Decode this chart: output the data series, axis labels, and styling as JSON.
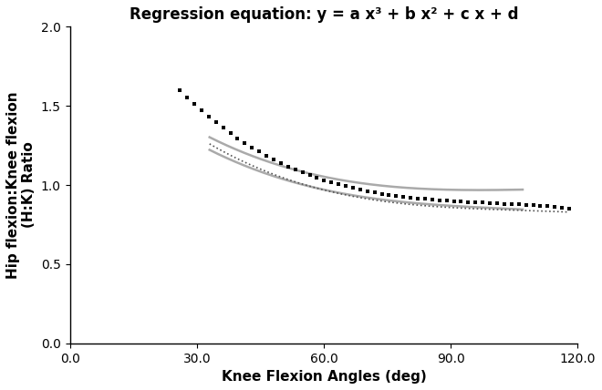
{
  "title": "Regression equation: y = a x³ + b x² + c x + d",
  "xlabel": "Knee Flexion Angles (deg)",
  "ylabel": "Hip flexion:Knee flexion\n(H:K) Ratio",
  "xlim": [
    0.0,
    120.0
  ],
  "ylim": [
    0.0,
    2.0
  ],
  "xticks": [
    0.0,
    30.0,
    60.0,
    90.0,
    120.0
  ],
  "yticks": [
    0.0,
    0.5,
    1.0,
    1.5,
    2.0
  ],
  "background_color": "#ffffff",
  "color_grey": "#aaaaaa",
  "color_black": "#111111",
  "color_dotted": "#555555",
  "title_fontsize": 12,
  "label_fontsize": 11,
  "tick_fontsize": 10,
  "main_pts_x": [
    26,
    32,
    40,
    50,
    60,
    70,
    80,
    90,
    100,
    110,
    118
  ],
  "main_pts_y": [
    1.6,
    1.45,
    1.28,
    1.14,
    1.03,
    0.97,
    0.92,
    0.9,
    0.88,
    0.87,
    0.855
  ],
  "grey_upper_pts_x": [
    33,
    40,
    50,
    60,
    70,
    80,
    90,
    100,
    107
  ],
  "grey_upper_pts_y": [
    1.3,
    1.22,
    1.12,
    1.05,
    1.01,
    0.98,
    0.97,
    0.97,
    0.97
  ],
  "grey_lower_pts_x": [
    33,
    40,
    50,
    60,
    70,
    80,
    90,
    100,
    107
  ],
  "grey_lower_pts_y": [
    1.22,
    1.14,
    1.04,
    0.97,
    0.92,
    0.89,
    0.87,
    0.855,
    0.845
  ],
  "dotted_pts_x": [
    33,
    40,
    50,
    60,
    70,
    80,
    90,
    100,
    110,
    118
  ],
  "dotted_pts_y": [
    1.26,
    1.16,
    1.05,
    0.97,
    0.91,
    0.88,
    0.86,
    0.845,
    0.835,
    0.83
  ]
}
